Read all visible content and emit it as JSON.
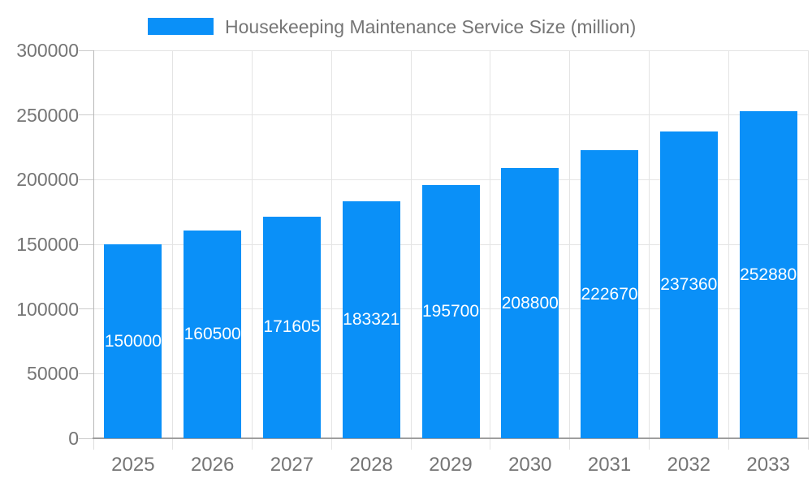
{
  "chart_data": {
    "type": "bar",
    "title": "Housekeeping Maintenance Service Size (million)",
    "categories": [
      "2025",
      "2026",
      "2027",
      "2028",
      "2029",
      "2030",
      "2031",
      "2032",
      "2033"
    ],
    "values": [
      150000,
      160500,
      171605,
      183321,
      195700,
      208800,
      222670,
      237360,
      252880
    ],
    "series": [
      {
        "name": "Housekeeping Maintenance Service Size (million)",
        "values": [
          150000,
          160500,
          171605,
          183321,
          195700,
          208800,
          222670,
          237360,
          252880
        ]
      }
    ],
    "bar_value_labels": [
      "150000",
      "160500",
      "171605",
      "183321",
      "195700",
      "208800",
      "222670",
      "237360",
      "252880"
    ],
    "xlabel": "",
    "ylabel": "",
    "ylim": [
      0,
      300000
    ],
    "yticks": [
      0,
      50000,
      100000,
      150000,
      200000,
      250000,
      300000
    ],
    "ytick_labels": [
      "0",
      "50000",
      "100000",
      "150000",
      "200000",
      "250000",
      "300000"
    ],
    "grid": true,
    "legend_position": "top",
    "colors": {
      "bar": "#0a90f8",
      "bar_label_text": "#ffffff",
      "axis_text": "#757575",
      "gridline": "#e4e4e4",
      "x_axis_line": "#9e9e9e",
      "y_axis_line": "#b8b8b8",
      "tick": "#cccccc",
      "background": "#ffffff"
    }
  }
}
